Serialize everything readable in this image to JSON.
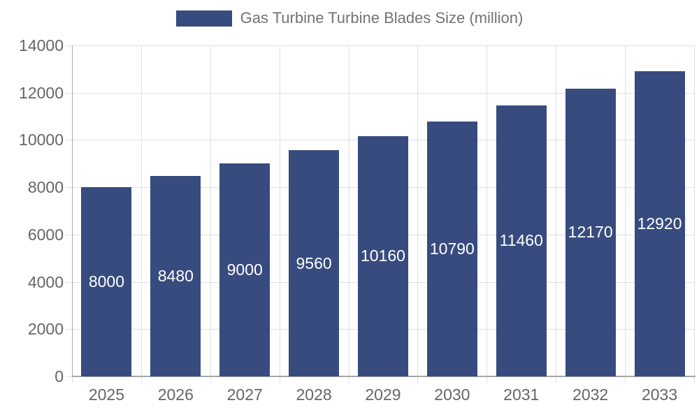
{
  "legend": {
    "label": "Gas Turbine Turbine Blades Size (million)"
  },
  "chart_data": {
    "type": "bar",
    "title": "",
    "series_name": "Gas Turbine Turbine Blades Size (million)",
    "categories": [
      "2025",
      "2026",
      "2027",
      "2028",
      "2029",
      "2030",
      "2031",
      "2032",
      "2033"
    ],
    "values": [
      8000,
      8480,
      9000,
      9560,
      10160,
      10790,
      11460,
      12170,
      12920
    ],
    "xlabel": "",
    "ylabel": "",
    "ylim": [
      0,
      14000
    ],
    "yticks": [
      0,
      2000,
      4000,
      6000,
      8000,
      10000,
      12000,
      14000
    ],
    "grid": true,
    "legend_position": "top",
    "bar_color": "#374b7e",
    "bar_value_label_color": "#ffffff",
    "axis_tick_label_color": "#666666",
    "legend_text_color": "#737373",
    "gridline_color": "#e0e0e0",
    "axis_line_color": "#a6a6a6"
  }
}
